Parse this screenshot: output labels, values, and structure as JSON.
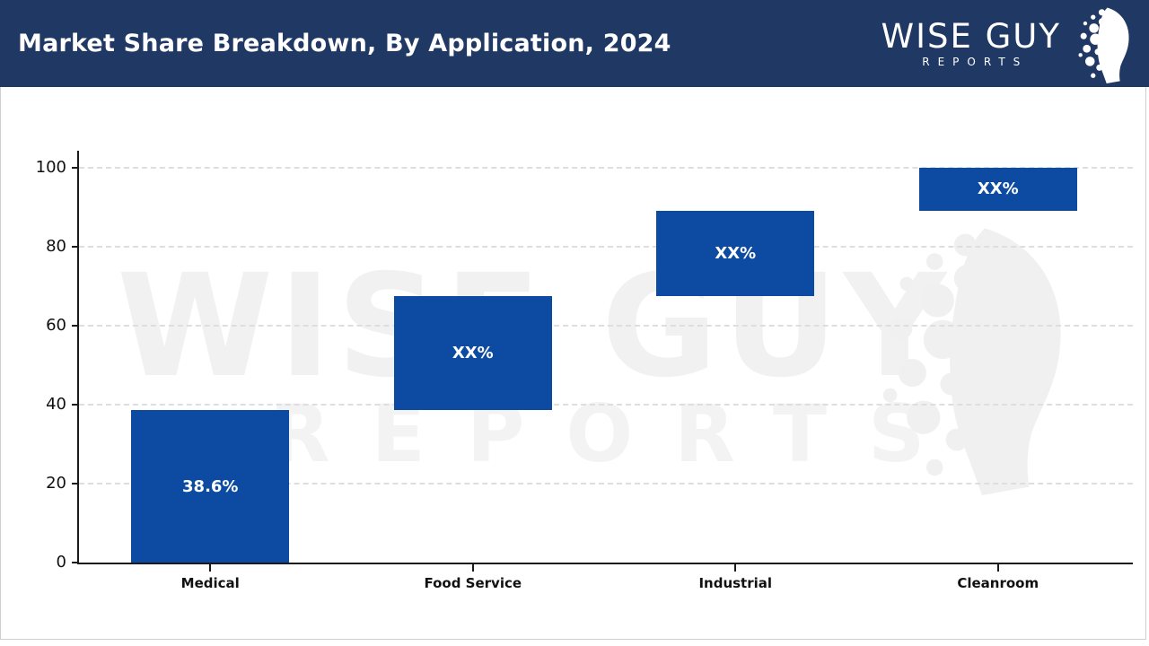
{
  "header": {
    "title": "Market Share Breakdown, By Application, 2024",
    "logo": {
      "line1": "WISE GUY",
      "line2": "REPORTS"
    }
  },
  "watermark": {
    "line1": "WISE GUY",
    "line2": "REPORTS"
  },
  "colors": {
    "header_bg": "#1F3864",
    "bar": "#0C4BA1",
    "bar_label": "#FFFFFF",
    "axis": "#1A1A1A",
    "gridline": "#DEDEDE",
    "watermark": "#F1F1F1",
    "page_border": "#CFCFCF"
  },
  "chart_data": {
    "type": "bar",
    "subtype": "waterfall",
    "title": "Market Share Breakdown, By Application, 2024",
    "xlabel": "",
    "ylabel": "",
    "categories": [
      "Medical",
      "Food Service",
      "Industrial",
      "Cleanroom"
    ],
    "segments": [
      {
        "category": "Medical",
        "start": 0,
        "end": 38.6,
        "label": "38.6%"
      },
      {
        "category": "Food Service",
        "start": 38.6,
        "end": 67.5,
        "label": "XX%"
      },
      {
        "category": "Industrial",
        "start": 67.5,
        "end": 89.2,
        "label": "XX%"
      },
      {
        "category": "Cleanroom",
        "start": 89.2,
        "end": 100,
        "label": "XX%"
      }
    ],
    "yticks": [
      0,
      20,
      40,
      60,
      80,
      100
    ],
    "ylim": [
      0,
      104
    ],
    "grid": "horizontal-dashed",
    "legend": "none"
  }
}
